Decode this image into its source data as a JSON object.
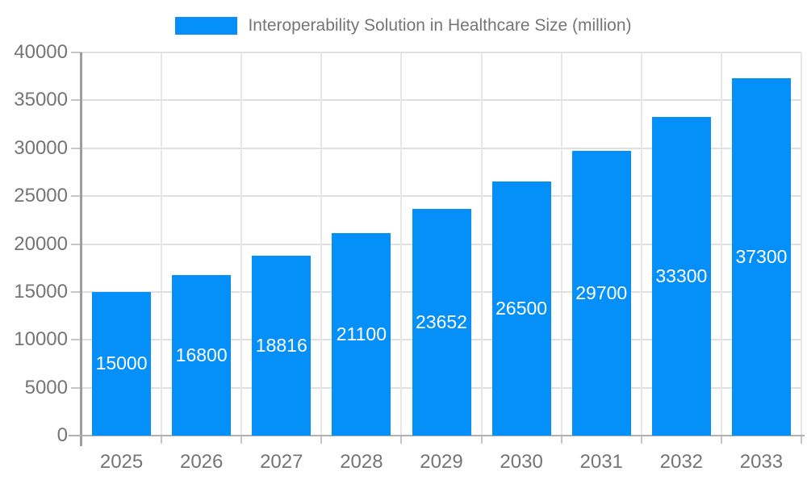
{
  "chart_data": {
    "type": "bar",
    "title": "Interoperability Solution in Healthcare Size (million)",
    "categories": [
      "2025",
      "2026",
      "2027",
      "2028",
      "2029",
      "2030",
      "2031",
      "2032",
      "2033"
    ],
    "values": [
      15000,
      16800,
      18816,
      21100,
      23652,
      26500,
      29700,
      33300,
      37300
    ],
    "xlabel": "",
    "ylabel": "",
    "ylim": [
      0,
      40000
    ],
    "yticks": [
      0,
      5000,
      10000,
      15000,
      20000,
      25000,
      30000,
      35000,
      40000
    ],
    "grid": true,
    "legend_position": "top-center",
    "bar_color": "#0490f8",
    "value_label_color": "#ffffff",
    "axis_label_color": "#757575",
    "title_color": "#757575",
    "h_gridline_color": "#e0e0e0",
    "v_gridline_color": "#e7e7e7",
    "y_axis_color": "#9e9e9e",
    "x_axis_color": "#b0b0b0",
    "tick_color": "#c6c6c6"
  }
}
